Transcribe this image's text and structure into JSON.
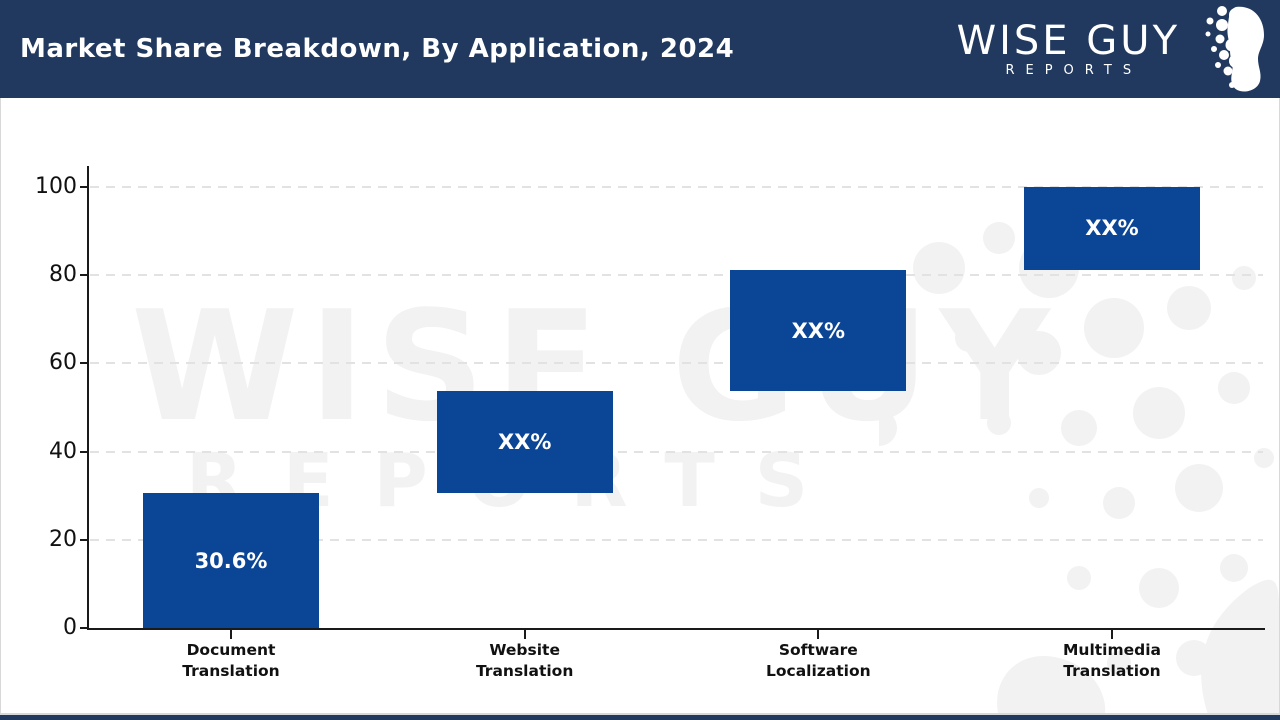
{
  "header": {
    "title": "Market Share Breakdown, By Application, 2024",
    "logo_line1": "WISE GUY",
    "logo_line2": "REPORTS"
  },
  "watermark": {
    "line1": "WISE GUY",
    "line2": "REPORTS"
  },
  "colors": {
    "header_bg": "#21395e",
    "bar": "#0b4596",
    "axis": "#1a1a1a",
    "grid": "#e2e2e2",
    "watermark": "#f2f2f2",
    "value_label": "#ffffff"
  },
  "chart_data": {
    "type": "bar",
    "subtype": "waterfall",
    "title": "Market Share Breakdown, By Application, 2024",
    "categories": [
      "Document Translation",
      "Website Translation",
      "Software Localization",
      "Multimedia Translation"
    ],
    "category_lines": [
      [
        "Document",
        "Translation"
      ],
      [
        "Website",
        "Translation"
      ],
      [
        "Software",
        "Localization"
      ],
      [
        "Multimedia",
        "Translation"
      ]
    ],
    "segments": [
      {
        "category": "Document Translation",
        "start": 0,
        "end": 30.6,
        "value": 30.6,
        "label": "30.6%"
      },
      {
        "category": "Website Translation",
        "start": 30.6,
        "end": 53.7,
        "value": 23.1,
        "label": "XX%"
      },
      {
        "category": "Software Localization",
        "start": 53.7,
        "end": 81.2,
        "value": 27.5,
        "label": "XX%"
      },
      {
        "category": "Multimedia Translation",
        "start": 81.2,
        "end": 100,
        "value": 18.8,
        "label": "XX%"
      }
    ],
    "y_ticks": [
      0,
      20,
      40,
      60,
      80,
      100
    ],
    "ylim": [
      0,
      104
    ],
    "xlabel": "",
    "ylabel": "",
    "legend": "none",
    "grid": "horizontal-dashed",
    "bar_color": "#0b4596",
    "value_label_color": "#ffffff"
  }
}
